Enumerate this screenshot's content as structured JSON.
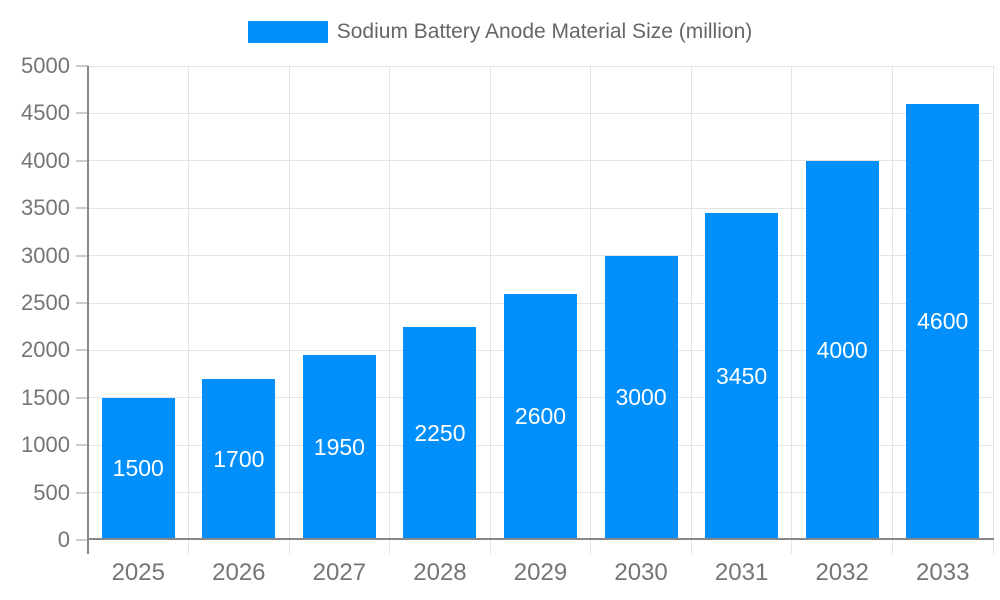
{
  "legend": {
    "label": "Sodium Battery Anode Material Size (million)",
    "marker_color": "#008FFB"
  },
  "chart_data": {
    "type": "bar",
    "title": "Sodium Battery Anode Material Size (million)",
    "categories": [
      "2025",
      "2026",
      "2027",
      "2028",
      "2029",
      "2030",
      "2031",
      "2032",
      "2033"
    ],
    "values": [
      1500,
      1700,
      1950,
      2250,
      2600,
      3000,
      3450,
      4000,
      4600
    ],
    "xlabel": "",
    "ylabel": "",
    "ylim": [
      0,
      5000
    ],
    "y_ticks": [
      0,
      500,
      1000,
      1500,
      2000,
      2500,
      3000,
      3500,
      4000,
      4500,
      5000
    ],
    "grid": true,
    "legend_position": "top-center",
    "bar_labels_visible": true,
    "colors": {
      "bar": "#008FFB",
      "bar_label": "#ffffff",
      "axis_label": "#757575",
      "legend_text": "#666666",
      "gridline": "#e4e4e4",
      "tick": "#cccccc",
      "axis_line": "#87878a",
      "background": "#ffffff"
    }
  }
}
